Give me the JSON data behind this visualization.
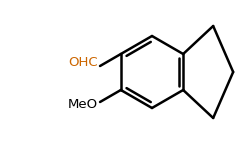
{
  "background_color": "#ffffff",
  "line_color": "#000000",
  "lw": 1.8,
  "OHC_color": "#cc6600",
  "MeO_color": "#000000",
  "figsize": [
    2.47,
    1.41
  ],
  "dpi": 100
}
